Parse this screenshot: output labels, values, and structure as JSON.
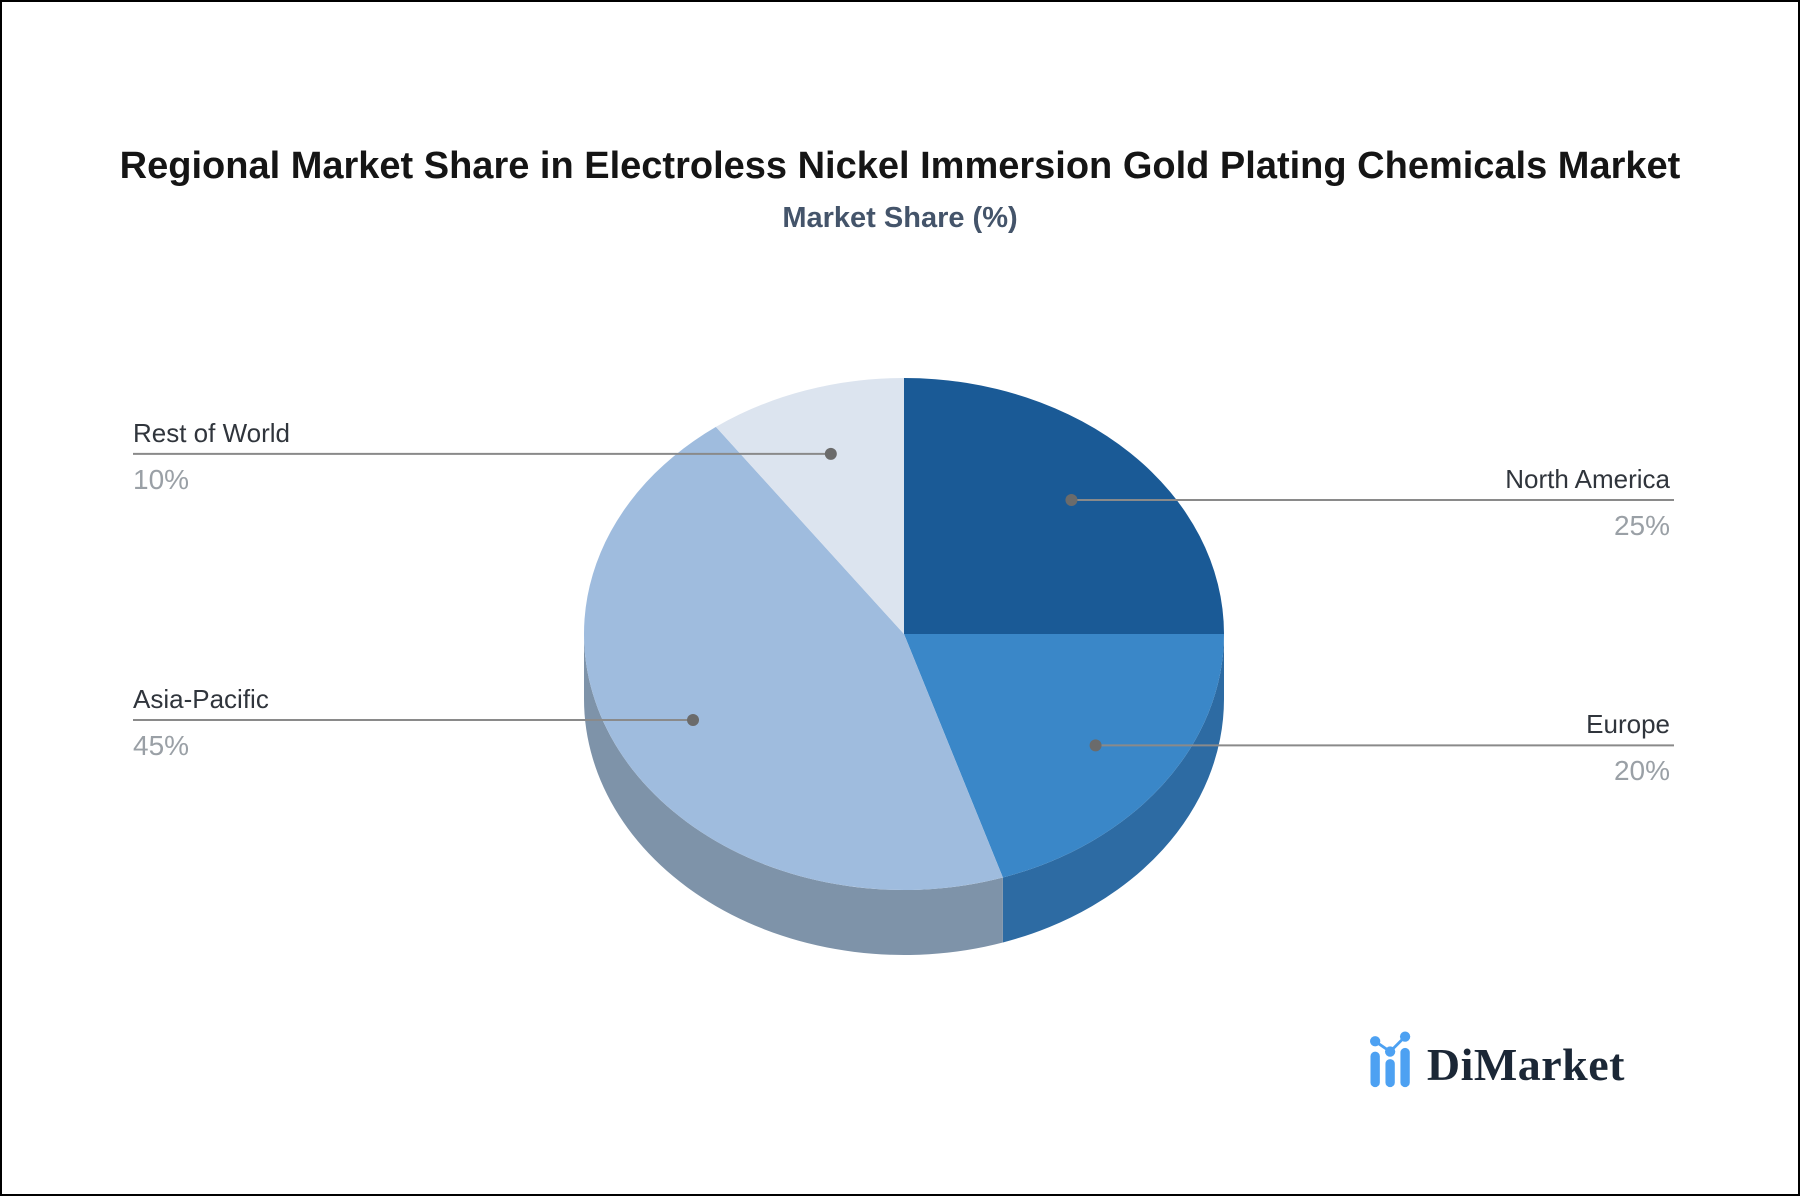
{
  "title": "Regional Market Share in Electroless Nickel Immersion Gold Plating Chemicals Market",
  "subtitle": "Market Share (%)",
  "brand": {
    "name": "DiMarket",
    "icon": "bar-chart-trend-icon",
    "text_color": "#1B2736",
    "icon_color": "#4DA1F2"
  },
  "chart_data": {
    "type": "pie",
    "title": "Regional Market Share in Electroless Nickel Immersion Gold Plating Chemicals Market",
    "subtitle": "Market Share (%)",
    "unit": "%",
    "style": "3d-pie",
    "direction": "clockwise",
    "start_angle_deg": 0,
    "legend": "none",
    "labels_layout": "side-callouts-with-leader-lines",
    "slices": [
      {
        "label": "North America",
        "value": 25,
        "color": "#1A5A96",
        "side_color": "#14466F"
      },
      {
        "label": "Europe",
        "value": 20,
        "color": "#3A87C8",
        "side_color": "#2D6BA3"
      },
      {
        "label": "Asia-Pacific",
        "value": 45,
        "color": "#9FBCDE",
        "side_color": "#7E93A9"
      },
      {
        "label": "Rest of World",
        "value": 10,
        "color": "#DCE4EF",
        "side_color": "#B8C4D4"
      }
    ],
    "callout_style": {
      "name_color": "#30353C",
      "value_color": "#9AA0A6",
      "line_color": "#8A8A8A",
      "dot_color": "#6B6B6B"
    }
  }
}
